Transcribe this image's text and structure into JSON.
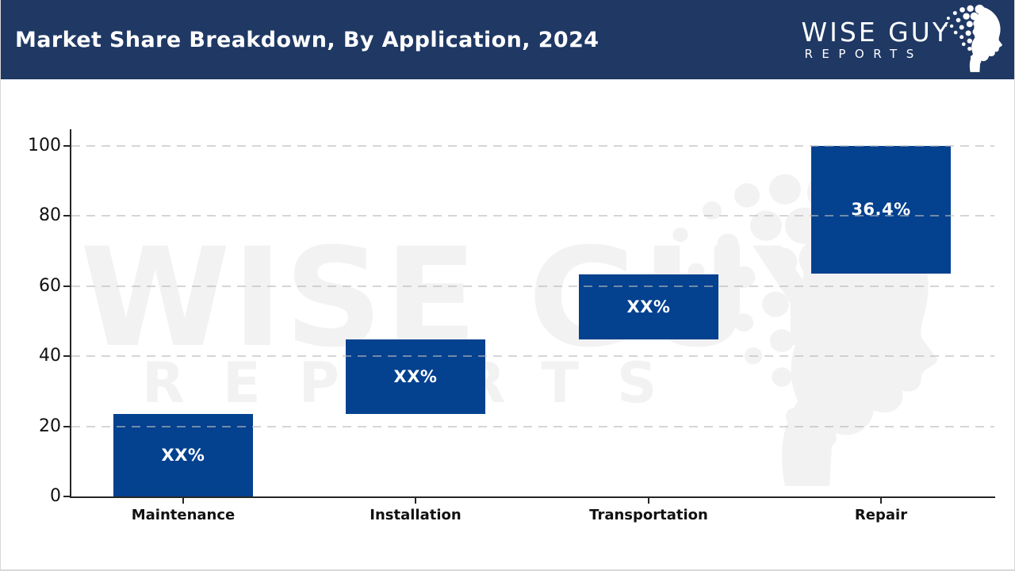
{
  "header": {
    "title": "Market Share Breakdown, By Application, 2024",
    "logo": {
      "line1": "WISE GUY",
      "line2": "REPORTS",
      "head_icon": "dotted-face-profile"
    }
  },
  "watermark": {
    "line1": "WISE GUY",
    "line2": "REPORTS",
    "head_icon": "dotted-face-profile"
  },
  "colors": {
    "header_bg": "#1f3864",
    "title_text": "#ffffff",
    "bar": "#04418f",
    "bar_label": "#ffffff",
    "axis": "#262626",
    "grid": "#d9d9d9",
    "watermark": "#f2f2f2",
    "page_border": "#d9d9d9"
  },
  "chart_data": {
    "type": "bar",
    "subtype": "floating-waterfall",
    "title": "Market Share Breakdown, By Application, 2024",
    "xlabel": "",
    "ylabel": "",
    "categories": [
      "Maintenance",
      "Installation",
      "Transportation",
      "Repair"
    ],
    "bars": [
      {
        "category": "Maintenance",
        "start": 0,
        "end": 23.5,
        "label": "XX%"
      },
      {
        "category": "Installation",
        "start": 23.5,
        "end": 44.8,
        "label": "XX%"
      },
      {
        "category": "Transportation",
        "start": 44.8,
        "end": 63.4,
        "label": "XX%"
      },
      {
        "category": "Repair",
        "start": 63.6,
        "end": 100,
        "label": "36.4%"
      }
    ],
    "ylim": [
      0,
      100
    ],
    "yticks": [
      0,
      20,
      40,
      60,
      80,
      100
    ],
    "grid": "horizontal-dashed",
    "legend": "none",
    "bar_color": "#04418f",
    "label_color": "#ffffff"
  }
}
